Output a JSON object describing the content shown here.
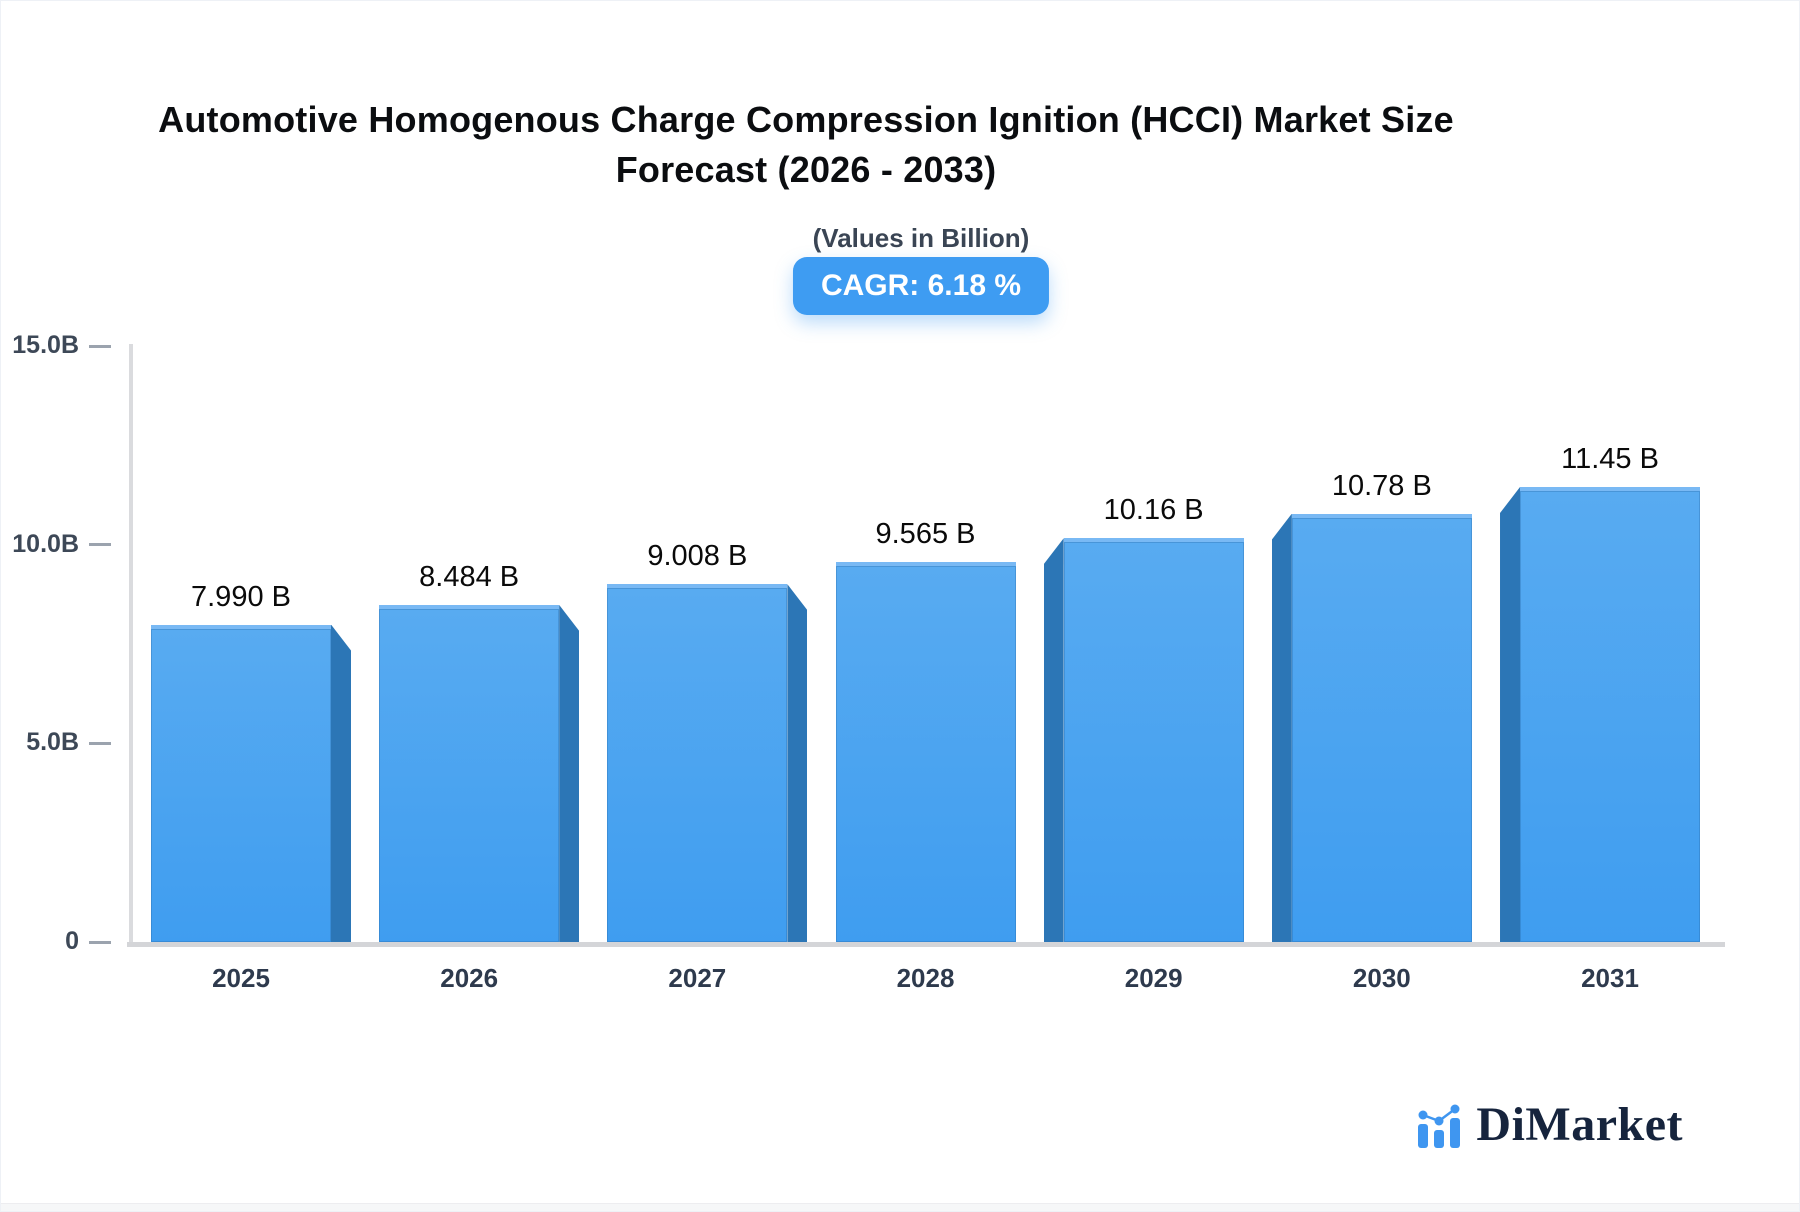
{
  "chart_data": {
    "type": "bar",
    "title": "Automotive Homogenous Charge Compression Ignition (HCCI) Market Size Forecast (2026 - 2033)",
    "title_lines": [
      "Automotive Homogenous Charge Compression Ignition (HCCI) Market Size",
      "Forecast (2026 - 2033)"
    ],
    "subtitle": "(Values in Billion)",
    "cagr_label": "CAGR: 6.18 %",
    "cagr_value": "6.18 %",
    "categories": [
      "2025",
      "2026",
      "2027",
      "2028",
      "2029",
      "2030",
      "2031"
    ],
    "values": [
      7.99,
      8.484,
      9.008,
      9.565,
      10.16,
      10.78,
      11.45
    ],
    "value_labels": [
      "7.990 B",
      "8.484 B",
      "9.008 B",
      "9.565 B",
      "10.16 B",
      "10.78 B",
      "11.45 B"
    ],
    "unit": "B",
    "ylim": [
      0,
      15
    ],
    "yticks": [
      {
        "label": "0",
        "value": 0
      },
      {
        "label": "5.0B",
        "value": 5
      },
      {
        "label": "10.0B",
        "value": 10
      },
      {
        "label": "15.0B",
        "value": 15
      }
    ],
    "grid": false,
    "legend": null,
    "colors": {
      "bar_fill_top": "#58abf1",
      "bar_fill_bottom": "#3f9df0",
      "bar_top_edge": "#79b9f4",
      "bar_side_face": "#2c76b6",
      "badge_background": "#3e9cf2",
      "badge_text": "#ffffff",
      "axis_line": "#dadbde",
      "tick_text": "#3d4857",
      "category_text": "#2e3a4d",
      "value_text": "#0a0a0a",
      "title_text": "#0b0d10",
      "brand_navy": "#16243d",
      "brand_blue": "#3f96f0"
    }
  },
  "brand": {
    "name": "DiMarket",
    "icon": "bar-chart-with-dots-icon"
  }
}
